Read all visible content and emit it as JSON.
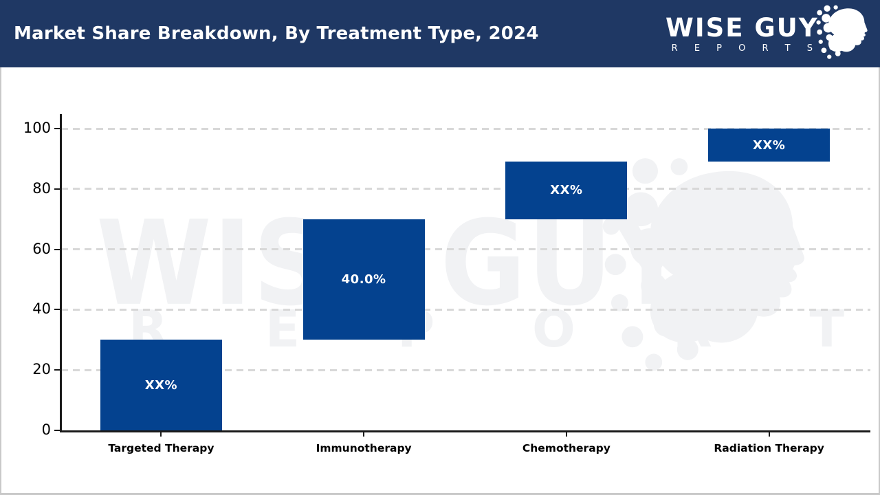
{
  "header": {
    "title": "Market Share Breakdown, By Treatment Type, 2024",
    "bg_color": "#1f3864",
    "logo": {
      "line1": "WISE GUY",
      "line2": "R E P O R T S"
    }
  },
  "watermark": {
    "line1": "WISE GUY",
    "line2": "R E P O R T S"
  },
  "chart_data": {
    "type": "bar",
    "subtype": "waterfall",
    "title": "Market Share Breakdown, By Treatment Type, 2024",
    "categories": [
      "Targeted Therapy",
      "Immunotherapy",
      "Chemotherapy",
      "Radiation Therapy"
    ],
    "segments": [
      {
        "category": "Targeted Therapy",
        "start": 0,
        "end": 30,
        "value": 30,
        "label": "XX%"
      },
      {
        "category": "Immunotherapy",
        "start": 30,
        "end": 70,
        "value": 40,
        "label": "40.0%"
      },
      {
        "category": "Chemotherapy",
        "start": 70,
        "end": 89,
        "value": 19,
        "label": "XX%"
      },
      {
        "category": "Radiation Therapy",
        "start": 89,
        "end": 100,
        "value": 11,
        "label": "XX%"
      }
    ],
    "xlabel": "",
    "ylabel": "",
    "ylim": [
      0,
      100
    ],
    "yticks": [
      0,
      20,
      40,
      60,
      80,
      100
    ],
    "grid": "horizontal-dashed",
    "legend": "none",
    "bar_color": "#04428f",
    "bar_label_color": "#ffffff",
    "axis_color": "#1a1a1a",
    "grid_color": "#d8d8d8"
  }
}
